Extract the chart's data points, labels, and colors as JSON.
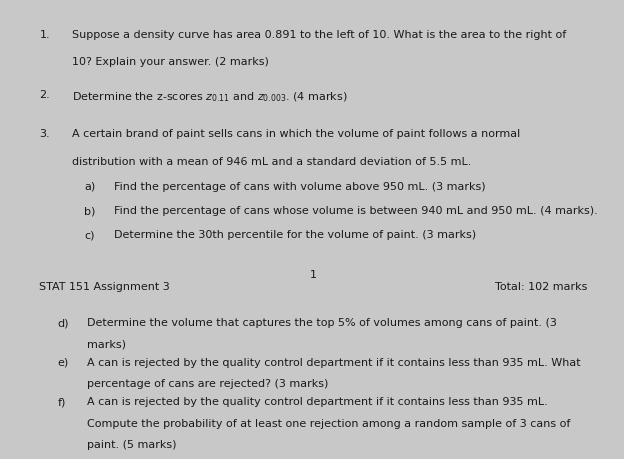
{
  "bg_color": "#c8c8c8",
  "page1_bg": "#ffffff",
  "page2_bg": "#ffffff",
  "font_color": "#1a1a1a",
  "fs": 8.0,
  "page_num": "1",
  "page2_header_left": "STAT 151 Assignment 3",
  "page2_header_right": "Total: 102 marks"
}
